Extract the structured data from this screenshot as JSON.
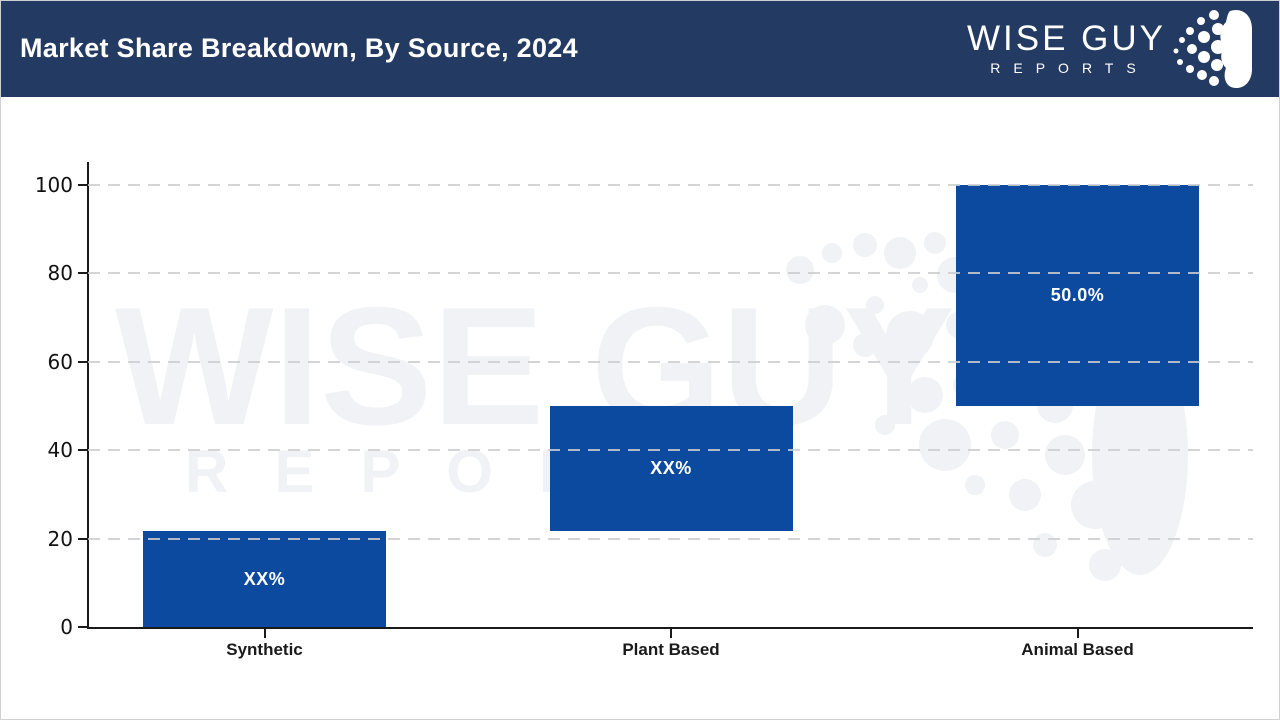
{
  "header": {
    "title": "Market Share Breakdown, By Source, 2024",
    "logo": {
      "line1": "WISE GUY",
      "line2": "REPORTS"
    }
  },
  "watermark": {
    "line1": "WISE GUY",
    "line2": "REPORTS"
  },
  "icons": {
    "logo_face": "dot-face-profile-icon",
    "watermark_face": "dot-face-profile-watermark"
  },
  "colors": {
    "header_bg": "#233A62",
    "bar": "#0B4A9F",
    "grid": "#CDCDD0",
    "axis": "#1A1A1A",
    "tick_text": "#111111",
    "bar_label_text": "#FFFFFF",
    "watermark": "#F1F2F5"
  },
  "chart_data": {
    "type": "bar",
    "subtype": "waterfall",
    "title": "Market Share Breakdown, By Source, 2024",
    "categories": [
      "Synthetic",
      "Plant Based",
      "Animal Based"
    ],
    "segments": [
      {
        "category": "Synthetic",
        "start": 0,
        "end": 21.7,
        "label": "XX%"
      },
      {
        "category": "Plant Based",
        "start": 21.7,
        "end": 50,
        "label": "XX%"
      },
      {
        "category": "Animal Based",
        "start": 50,
        "end": 100,
        "label": "50.0%"
      }
    ],
    "yticks": [
      0,
      20,
      40,
      60,
      80,
      100
    ],
    "ylim": [
      0,
      105
    ],
    "xlabel": "",
    "ylabel": "",
    "grid": "horizontal-dashed",
    "legend": "none"
  }
}
